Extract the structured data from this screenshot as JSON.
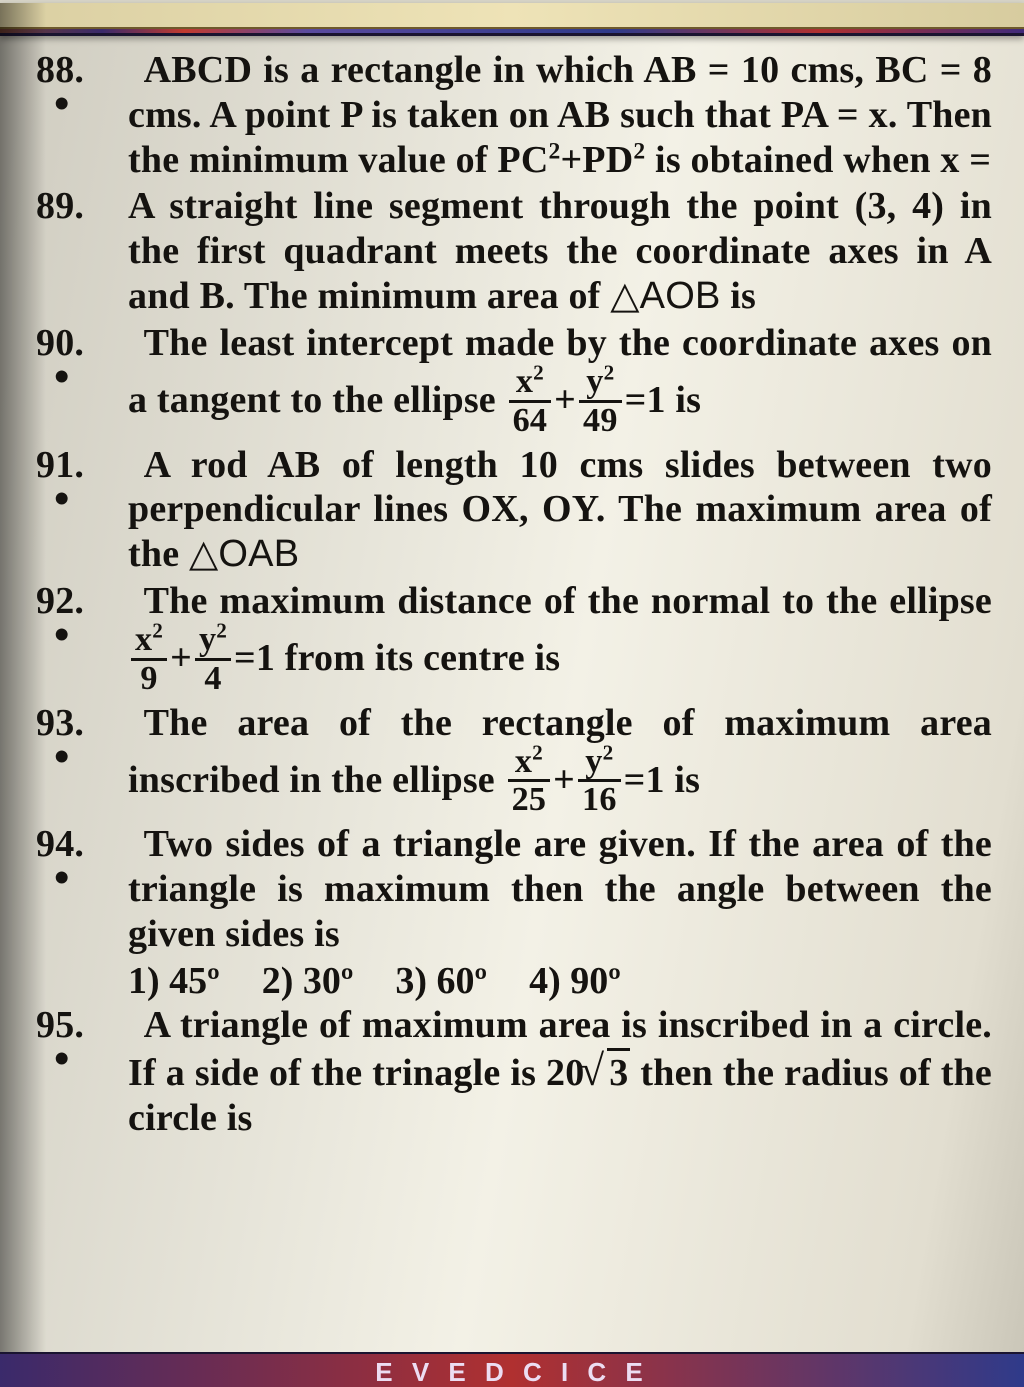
{
  "colors": {
    "text": "#151310",
    "page_bg_stops": [
      "#cfccc0",
      "#e9e7dc",
      "#f3f1e6",
      "#e2ded0",
      "#c9c5b7"
    ],
    "rule": "#151310"
  },
  "typography": {
    "family": "Times New Roman",
    "base_size_pt": 28,
    "weight": "bold",
    "line_height": 1.18
  },
  "problems": [
    {
      "n": "88.",
      "bullet": true,
      "parts": [
        {
          "t": "ABCD is a rectangle in which AB = 10 cms, BC = 8 cms. A point P is taken on AB such that PA = x. Then the minimum value of PC"
        },
        {
          "sup": "2"
        },
        {
          "t": "+PD"
        },
        {
          "sup": "2"
        },
        {
          "t": " is obtained when x ="
        }
      ]
    },
    {
      "n": "89.",
      "bullet": false,
      "parts": [
        {
          "t": "A straight line segment through the point (3, 4) in the first quadrant meets the coordinate axes in A and B. The minimum area of "
        },
        {
          "tri": "△AOB"
        },
        {
          "t": " is"
        }
      ]
    },
    {
      "n": "90.",
      "bullet": true,
      "parts": [
        {
          "t": "The least intercept made by the coordinate axes on a tangent to the ellipse "
        },
        {
          "frac": {
            "n": "x<sup>2</sup>",
            "d": "64"
          }
        },
        {
          "t": "+"
        },
        {
          "frac": {
            "n": "y<sup>2</sup>",
            "d": "49"
          }
        },
        {
          "t": "=1 is"
        }
      ]
    },
    {
      "n": "91.",
      "bullet": true,
      "parts": [
        {
          "t": "A rod AB of length 10 cms slides between two perpendicular lines OX, OY. The maximum area of the "
        },
        {
          "tri": "△OAB"
        }
      ]
    },
    {
      "n": "92.",
      "bullet": true,
      "parts": [
        {
          "t": "The maximum distance of the normal to the ellipse "
        },
        {
          "frac": {
            "n": "x<sup>2</sup>",
            "d": "9"
          }
        },
        {
          "t": "+"
        },
        {
          "frac": {
            "n": "y<sup>2</sup>",
            "d": "4"
          }
        },
        {
          "t": "=1 from its centre is"
        }
      ]
    },
    {
      "n": "93.",
      "bullet": true,
      "parts": [
        {
          "t": "The area of the rectangle of maximum area inscribed in the ellipse "
        },
        {
          "frac": {
            "n": "x<sup>2</sup>",
            "d": "25"
          }
        },
        {
          "t": "+"
        },
        {
          "frac": {
            "n": "y<sup>2</sup>",
            "d": "16"
          }
        },
        {
          "t": "=1 is"
        }
      ]
    },
    {
      "n": "94.",
      "bullet": true,
      "parts": [
        {
          "t": "Two sides of a triangle are given. If the area of the triangle is maximum then the angle between the given sides is"
        }
      ],
      "options": [
        "1) 45º",
        "2) 30º",
        "3) 60º",
        "4) 90º"
      ]
    },
    {
      "n": "95.",
      "bullet": true,
      "parts": [
        {
          "t": "A triangle of maximum area is inscribed in a circle. If a side of the trinagle is 20"
        },
        {
          "sqrt": "3"
        },
        {
          "t": " then the radius of the circle is"
        }
      ]
    }
  ],
  "footer_text": "E V E D C I C E"
}
